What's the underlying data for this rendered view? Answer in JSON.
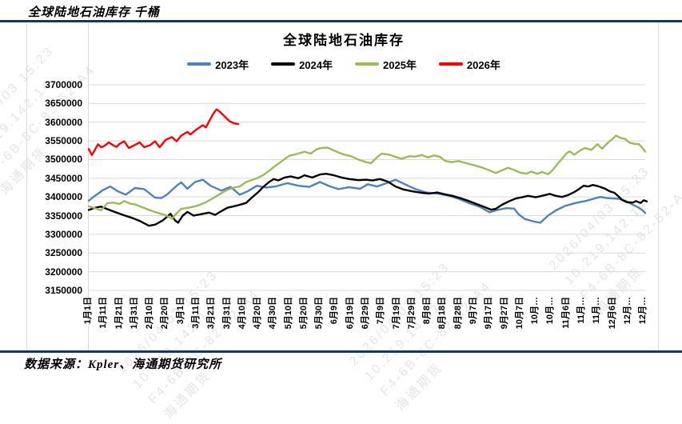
{
  "page": {
    "header_title": "全球陆地石油库存  千桶",
    "footer_source": "数据来源：Kpler、海通期货研究所",
    "rule_color": "#17375e",
    "watermark_lines": [
      "2026/04/03 15:23",
      "10.219.142.14",
      "F4-6B-8C-82-52-A4",
      "海通期货"
    ]
  },
  "chart_data": {
    "type": "line",
    "title": "全球陆地石油库存",
    "unit_label": "千桶",
    "grid": true,
    "legend_position": "top",
    "ylim": [
      3150000,
      3700000
    ],
    "y_tick_step": 50000,
    "y_ticks": [
      3700000,
      3650000,
      3600000,
      3550000,
      3500000,
      3450000,
      3400000,
      3350000,
      3300000,
      3250000,
      3200000,
      3150000
    ],
    "x_tick_interval_days": 10,
    "x_span_days": 366,
    "x_tick_labels": [
      "1月1日",
      "1月11日",
      "1月21日",
      "1月31日",
      "2月10日",
      "2月20日",
      "3月1日",
      "3月11日",
      "3月21日",
      "3月31日",
      "4月10日",
      "4月20日",
      "4月30日",
      "5月10日",
      "5月20日",
      "5月30日",
      "6月9日",
      "6月19日",
      "6月29日",
      "7月9日",
      "7月19日",
      "7月29日",
      "8月8日",
      "8月18日",
      "8月28日",
      "9月7日",
      "9月17日",
      "9月27日",
      "10月7日",
      "10月…",
      "10月…",
      "11月6日",
      "11月…",
      "11月…",
      "12月6日",
      "12月…",
      "12月…"
    ],
    "series": [
      {
        "name": "2023年",
        "color": "#4F81BD",
        "points": [
          [
            1,
            3390000
          ],
          [
            4,
            3400000
          ],
          [
            10,
            3418000
          ],
          [
            15,
            3428000
          ],
          [
            20,
            3415000
          ],
          [
            25,
            3406000
          ],
          [
            31,
            3424000
          ],
          [
            37,
            3421000
          ],
          [
            44,
            3398000
          ],
          [
            48,
            3397000
          ],
          [
            52,
            3407000
          ],
          [
            58,
            3430000
          ],
          [
            61,
            3439000
          ],
          [
            65,
            3422000
          ],
          [
            70,
            3440000
          ],
          [
            75,
            3446000
          ],
          [
            80,
            3430000
          ],
          [
            87,
            3417000
          ],
          [
            93,
            3427000
          ],
          [
            99,
            3406000
          ],
          [
            104,
            3415000
          ],
          [
            110,
            3430000
          ],
          [
            116,
            3425000
          ],
          [
            122,
            3428000
          ],
          [
            130,
            3437000
          ],
          [
            137,
            3430000
          ],
          [
            144,
            3427000
          ],
          [
            151,
            3440000
          ],
          [
            157,
            3429000
          ],
          [
            163,
            3421000
          ],
          [
            170,
            3426000
          ],
          [
            177,
            3422000
          ],
          [
            182,
            3434000
          ],
          [
            188,
            3428000
          ],
          [
            195,
            3438000
          ],
          [
            200,
            3446000
          ],
          [
            207,
            3432000
          ],
          [
            213,
            3421000
          ],
          [
            220,
            3412000
          ],
          [
            227,
            3409000
          ],
          [
            234,
            3404000
          ],
          [
            241,
            3395000
          ],
          [
            248,
            3383000
          ],
          [
            255,
            3373000
          ],
          [
            261,
            3359000
          ],
          [
            266,
            3365000
          ],
          [
            272,
            3370000
          ],
          [
            277,
            3369000
          ],
          [
            280,
            3353000
          ],
          [
            284,
            3341000
          ],
          [
            290,
            3334000
          ],
          [
            294,
            3331000
          ],
          [
            299,
            3350000
          ],
          [
            304,
            3364000
          ],
          [
            310,
            3376000
          ],
          [
            317,
            3384000
          ],
          [
            324,
            3390000
          ],
          [
            330,
            3397000
          ],
          [
            333,
            3400000
          ],
          [
            337,
            3397000
          ],
          [
            341,
            3396000
          ],
          [
            345,
            3395000
          ],
          [
            349,
            3390000
          ],
          [
            353,
            3381000
          ],
          [
            357,
            3373000
          ],
          [
            360,
            3365000
          ],
          [
            362,
            3357000
          ]
        ]
      },
      {
        "name": "2024年",
        "color": "#000000",
        "points": [
          [
            1,
            3365000
          ],
          [
            5,
            3371000
          ],
          [
            9,
            3374000
          ],
          [
            14,
            3366000
          ],
          [
            19,
            3358000
          ],
          [
            24,
            3351000
          ],
          [
            29,
            3344000
          ],
          [
            34,
            3336000
          ],
          [
            40,
            3323000
          ],
          [
            44,
            3326000
          ],
          [
            49,
            3337000
          ],
          [
            54,
            3355000
          ],
          [
            57,
            3337000
          ],
          [
            59,
            3331000
          ],
          [
            62,
            3350000
          ],
          [
            65,
            3360000
          ],
          [
            69,
            3350000
          ],
          [
            74,
            3354000
          ],
          [
            79,
            3358000
          ],
          [
            83,
            3352000
          ],
          [
            87,
            3362000
          ],
          [
            91,
            3371000
          ],
          [
            95,
            3375000
          ],
          [
            99,
            3379000
          ],
          [
            103,
            3384000
          ],
          [
            107,
            3399000
          ],
          [
            111,
            3413000
          ],
          [
            114,
            3426000
          ],
          [
            118,
            3440000
          ],
          [
            121,
            3448000
          ],
          [
            124,
            3444000
          ],
          [
            128,
            3452000
          ],
          [
            132,
            3455000
          ],
          [
            137,
            3450000
          ],
          [
            141,
            3458000
          ],
          [
            146,
            3452000
          ],
          [
            151,
            3460000
          ],
          [
            155,
            3462000
          ],
          [
            160,
            3458000
          ],
          [
            165,
            3452000
          ],
          [
            170,
            3448000
          ],
          [
            176,
            3445000
          ],
          [
            181,
            3446000
          ],
          [
            185,
            3444000
          ],
          [
            190,
            3448000
          ],
          [
            195,
            3441000
          ],
          [
            200,
            3428000
          ],
          [
            205,
            3420000
          ],
          [
            211,
            3415000
          ],
          [
            217,
            3411000
          ],
          [
            222,
            3409000
          ],
          [
            227,
            3412000
          ],
          [
            232,
            3407000
          ],
          [
            237,
            3403000
          ],
          [
            242,
            3397000
          ],
          [
            247,
            3390000
          ],
          [
            252,
            3382000
          ],
          [
            257,
            3374000
          ],
          [
            262,
            3366000
          ],
          [
            265,
            3368000
          ],
          [
            269,
            3379000
          ],
          [
            274,
            3389000
          ],
          [
            278,
            3396000
          ],
          [
            282,
            3399000
          ],
          [
            286,
            3403000
          ],
          [
            291,
            3399000
          ],
          [
            296,
            3404000
          ],
          [
            300,
            3408000
          ],
          [
            304,
            3403000
          ],
          [
            308,
            3400000
          ],
          [
            312,
            3405000
          ],
          [
            316,
            3413000
          ],
          [
            319,
            3421000
          ],
          [
            322,
            3430000
          ],
          [
            325,
            3428000
          ],
          [
            328,
            3432000
          ],
          [
            332,
            3428000
          ],
          [
            336,
            3422000
          ],
          [
            339,
            3415000
          ],
          [
            342,
            3411000
          ],
          [
            344,
            3404000
          ],
          [
            347,
            3392000
          ],
          [
            350,
            3386000
          ],
          [
            354,
            3385000
          ],
          [
            356,
            3389000
          ],
          [
            359,
            3384000
          ],
          [
            361,
            3391000
          ],
          [
            363,
            3388000
          ]
        ]
      },
      {
        "name": "2025年",
        "color": "#9BBB59",
        "points": [
          [
            1,
            3375000
          ],
          [
            5,
            3370000
          ],
          [
            9,
            3364000
          ],
          [
            13,
            3383000
          ],
          [
            17,
            3385000
          ],
          [
            21,
            3381000
          ],
          [
            24,
            3389000
          ],
          [
            28,
            3382000
          ],
          [
            31,
            3380000
          ],
          [
            36,
            3372000
          ],
          [
            41,
            3364000
          ],
          [
            46,
            3357000
          ],
          [
            51,
            3351000
          ],
          [
            55,
            3342000
          ],
          [
            58,
            3356000
          ],
          [
            61,
            3368000
          ],
          [
            66,
            3371000
          ],
          [
            71,
            3376000
          ],
          [
            76,
            3384000
          ],
          [
            81,
            3395000
          ],
          [
            85,
            3405000
          ],
          [
            90,
            3417000
          ],
          [
            94,
            3424000
          ],
          [
            99,
            3428000
          ],
          [
            103,
            3440000
          ],
          [
            106,
            3444000
          ],
          [
            110,
            3450000
          ],
          [
            114,
            3458000
          ],
          [
            118,
            3470000
          ],
          [
            121,
            3480000
          ],
          [
            126,
            3495000
          ],
          [
            131,
            3510000
          ],
          [
            136,
            3515000
          ],
          [
            141,
            3521000
          ],
          [
            145,
            3516000
          ],
          [
            149,
            3528000
          ],
          [
            152,
            3531000
          ],
          [
            156,
            3532000
          ],
          [
            160,
            3524000
          ],
          [
            166,
            3514000
          ],
          [
            171,
            3509000
          ],
          [
            176,
            3500000
          ],
          [
            181,
            3493000
          ],
          [
            184,
            3490000
          ],
          [
            188,
            3506000
          ],
          [
            191,
            3516000
          ],
          [
            196,
            3513000
          ],
          [
            200,
            3507000
          ],
          [
            204,
            3502000
          ],
          [
            209,
            3509000
          ],
          [
            213,
            3508000
          ],
          [
            217,
            3512000
          ],
          [
            221,
            3506000
          ],
          [
            225,
            3511000
          ],
          [
            229,
            3507000
          ],
          [
            232,
            3497000
          ],
          [
            236,
            3493000
          ],
          [
            241,
            3496000
          ],
          [
            246,
            3490000
          ],
          [
            251,
            3485000
          ],
          [
            256,
            3479000
          ],
          [
            261,
            3471000
          ],
          [
            265,
            3464000
          ],
          [
            269,
            3471000
          ],
          [
            273,
            3478000
          ],
          [
            277,
            3472000
          ],
          [
            281,
            3465000
          ],
          [
            285,
            3462000
          ],
          [
            288,
            3468000
          ],
          [
            292,
            3462000
          ],
          [
            295,
            3467000
          ],
          [
            299,
            3461000
          ],
          [
            302,
            3472000
          ],
          [
            305,
            3488000
          ],
          [
            308,
            3502000
          ],
          [
            311,
            3517000
          ],
          [
            313,
            3522000
          ],
          [
            316,
            3513000
          ],
          [
            320,
            3525000
          ],
          [
            323,
            3531000
          ],
          [
            327,
            3526000
          ],
          [
            331,
            3541000
          ],
          [
            334,
            3529000
          ],
          [
            338,
            3546000
          ],
          [
            341,
            3556000
          ],
          [
            343,
            3564000
          ],
          [
            346,
            3558000
          ],
          [
            349,
            3555000
          ],
          [
            352,
            3545000
          ],
          [
            355,
            3542000
          ],
          [
            358,
            3541000
          ],
          [
            360,
            3532000
          ],
          [
            362,
            3521000
          ]
        ]
      },
      {
        "name": "2026年",
        "color": "#FF0000",
        "points": [
          [
            1,
            3528000
          ],
          [
            3,
            3512000
          ],
          [
            7,
            3541000
          ],
          [
            9,
            3533000
          ],
          [
            11,
            3536000
          ],
          [
            14,
            3546000
          ],
          [
            17,
            3538000
          ],
          [
            19,
            3534000
          ],
          [
            21,
            3542000
          ],
          [
            24,
            3549000
          ],
          [
            27,
            3531000
          ],
          [
            31,
            3539000
          ],
          [
            34,
            3546000
          ],
          [
            37,
            3533000
          ],
          [
            41,
            3539000
          ],
          [
            44,
            3549000
          ],
          [
            47,
            3533000
          ],
          [
            51,
            3553000
          ],
          [
            55,
            3560000
          ],
          [
            58,
            3549000
          ],
          [
            61,
            3564000
          ],
          [
            65,
            3574000
          ],
          [
            67,
            3567000
          ],
          [
            71,
            3581000
          ],
          [
            75,
            3592000
          ],
          [
            77,
            3586000
          ],
          [
            81,
            3617000
          ],
          [
            83,
            3630000
          ],
          [
            84,
            3634000
          ],
          [
            86,
            3628000
          ],
          [
            89,
            3616000
          ],
          [
            92,
            3604000
          ],
          [
            95,
            3597000
          ],
          [
            98,
            3595000
          ]
        ]
      }
    ]
  }
}
